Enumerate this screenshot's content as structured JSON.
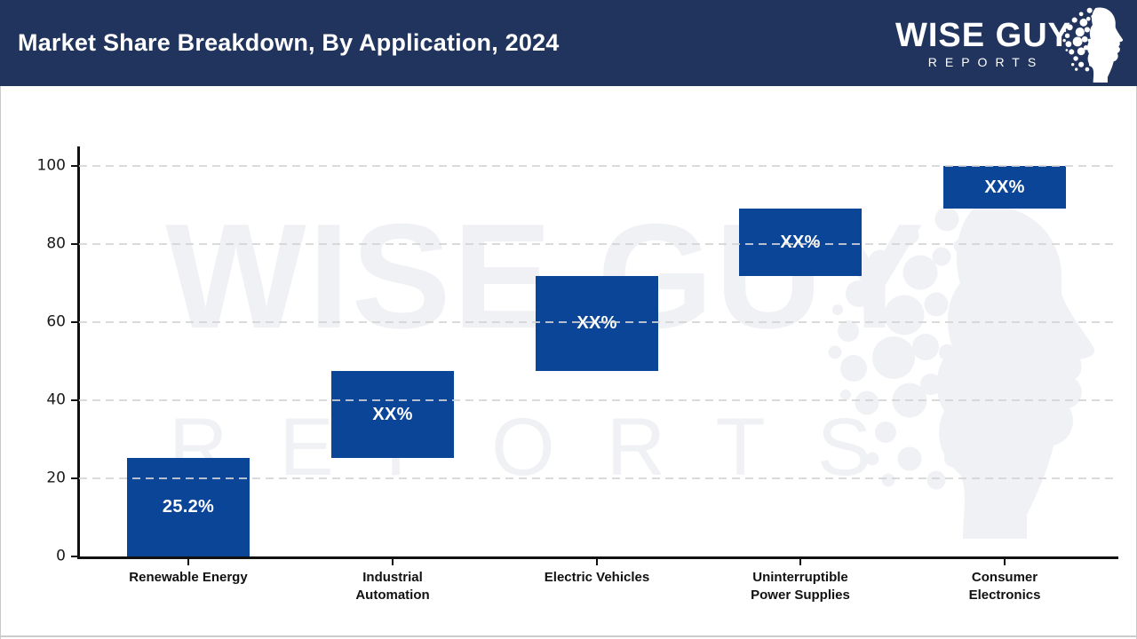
{
  "header": {
    "title": "Market Share Breakdown, By Application, 2024",
    "logo": {
      "line1": "WISE GUY",
      "line2": "REPORTS"
    }
  },
  "watermark": {
    "line1": "WISE GUY",
    "line2": "REPORTS"
  },
  "colors": {
    "header_bg": "#20345e",
    "bar_blue": "#0b4598",
    "grid_line": "#d4d4d4",
    "watermark_gray": "#f0f1f4"
  },
  "chart_data": {
    "type": "bar",
    "subtype": "waterfall",
    "title": "Market Share Breakdown, By Application, 2024",
    "xlabel": "",
    "ylabel": "",
    "ylim": [
      0,
      105
    ],
    "yticks": [
      0,
      20,
      40,
      60,
      80,
      100
    ],
    "grid": "horizontal-dashed",
    "legend": "none",
    "bar_color": "#0b4598",
    "value_label_color": "#ffffff",
    "categories": [
      "Renewable Energy",
      "Industrial Automation",
      "Electric Vehicles",
      "Uninterruptible Power Supplies",
      "Consumer Electronics"
    ],
    "segments": [
      {
        "category": "Renewable Energy",
        "category_lines": [
          "Renewable Energy"
        ],
        "start": 0,
        "end": 25.2,
        "value_label": "25.2%"
      },
      {
        "category": "Industrial Automation",
        "category_lines": [
          "Industrial",
          "Automation"
        ],
        "start": 25.2,
        "end": 47.5,
        "value_label": "XX%"
      },
      {
        "category": "Electric Vehicles",
        "category_lines": [
          "Electric Vehicles"
        ],
        "start": 47.6,
        "end": 71.8,
        "value_label": "XX%"
      },
      {
        "category": "Uninterruptible Power Supplies",
        "category_lines": [
          "Uninterruptible",
          "Power Supplies"
        ],
        "start": 71.9,
        "end": 89.0,
        "value_label": "XX%"
      },
      {
        "category": "Consumer Electronics",
        "category_lines": [
          "Consumer",
          "Electronics"
        ],
        "start": 89.0,
        "end": 100.0,
        "value_label": "XX%"
      }
    ]
  }
}
